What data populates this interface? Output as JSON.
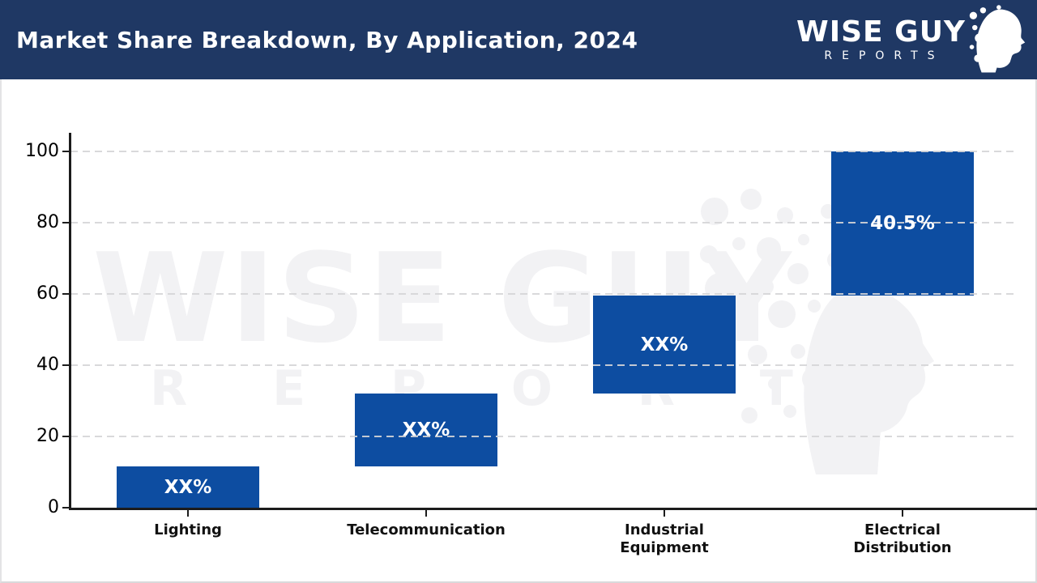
{
  "header": {
    "title": "Market Share Breakdown, By Application, 2024",
    "logo": {
      "line1": "WISE GUY",
      "line2": "REPORTS"
    }
  },
  "watermark": {
    "line1": "WISE GUY",
    "line2": "R E P O R T S"
  },
  "chart_data": {
    "type": "bar",
    "subtype": "waterfall",
    "title": "Market Share Breakdown, By Application, 2024",
    "categories": [
      "Lighting",
      "Telecommunication",
      "Industrial Equipment",
      "Electrical Distribution"
    ],
    "category_labels": [
      "Lighting",
      "Telecommunication",
      "Industrial\nEquipment",
      "Electrical\nDistribution"
    ],
    "series": [
      {
        "name": "Market share (%)",
        "segments": [
          {
            "category": "Lighting",
            "start": 0,
            "end": 11.5,
            "value": 11.5,
            "value_label": "XX%"
          },
          {
            "category": "Telecommunication",
            "start": 11.5,
            "end": 32,
            "value": 20.5,
            "value_label": "XX%"
          },
          {
            "category": "Industrial Equipment",
            "start": 32,
            "end": 59.5,
            "value": 27.5,
            "value_label": "XX%"
          },
          {
            "category": "Electrical Distribution",
            "start": 59.5,
            "end": 100,
            "value": 40.5,
            "value_label": "40.5%"
          }
        ]
      }
    ],
    "xlabel": "",
    "ylabel": "",
    "ylim": [
      0,
      100
    ],
    "yticks": [
      0,
      20,
      40,
      60,
      80,
      100
    ],
    "grid": "horizontal-dashed",
    "legend": "none",
    "colors": {
      "bar": "#0d4da1",
      "value_label": "#ffffff",
      "grid": "#d5d5d7",
      "axis": "#1c1c1c",
      "category_label": "#111111",
      "header_bg": "#1f3864",
      "header_text": "#ffffff",
      "watermark": "#f2f2f4"
    }
  }
}
